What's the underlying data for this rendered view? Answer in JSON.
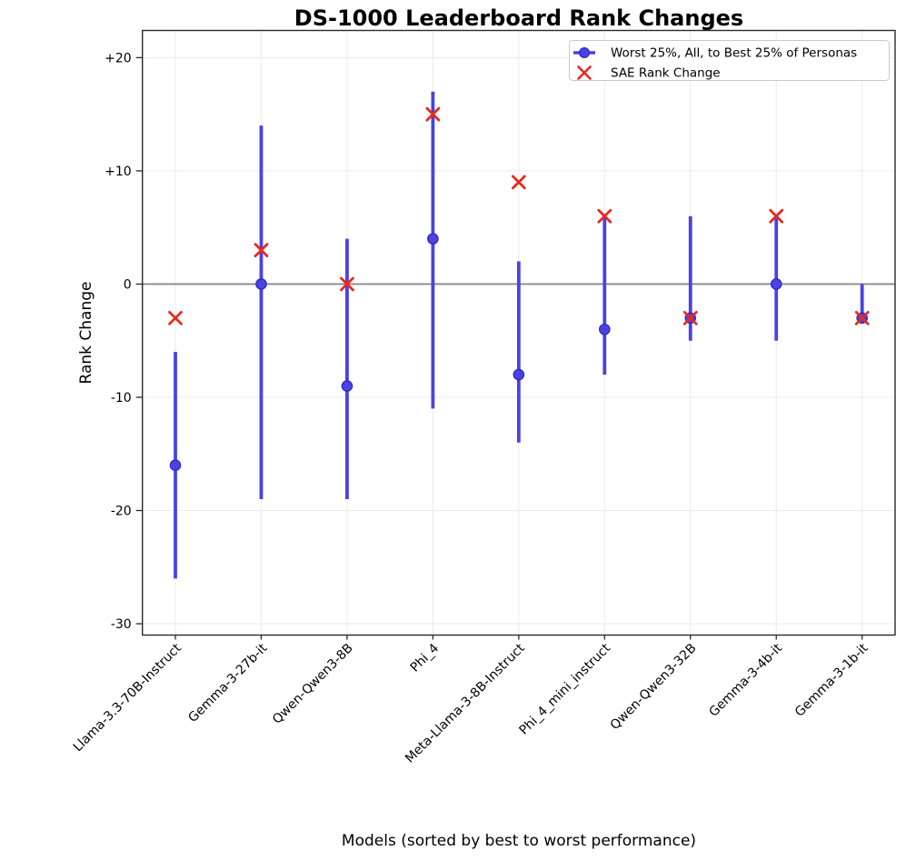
{
  "chart_data": {
    "type": "errorbar_scatter",
    "title": "DS-1000 Leaderboard Rank Changes",
    "xlabel": "Models (sorted by best to worst performance)",
    "ylabel": "Rank Change",
    "categories": [
      "Llama-3.3-70B-Instruct",
      "Gemma-3-27b-it",
      "Qwen-Qwen3-8B",
      "Phi_4",
      "Meta-Llama-3-8B-Instruct",
      "Phi_4_mini_instruct",
      "Qwen-Qwen3-32B",
      "Gemma-3-4b-it",
      "Gemma-3-1b-it"
    ],
    "ylim": [
      -31.0,
      22.4
    ],
    "yticks": {
      "values": [
        20,
        10,
        0,
        -10,
        -20,
        -30
      ],
      "labels": [
        "+20",
        "+10",
        "0",
        "-10",
        "-20",
        "-30"
      ]
    },
    "zero_line": 0,
    "grid": true,
    "series": [
      {
        "name": "Worst 25%, All, to Best 25% of Personas",
        "type": "errorbar",
        "low": [
          -26,
          -19,
          -19,
          -11,
          -14,
          -8,
          -5,
          -5,
          -3
        ],
        "mid": [
          -16,
          0,
          -9,
          4,
          -8,
          -4,
          -3,
          0,
          -3
        ],
        "high": [
          -6,
          14,
          4,
          17,
          2,
          6,
          6,
          6,
          0
        ],
        "color": "#4a42e4",
        "marker_edge_color": "#2e28b8"
      },
      {
        "name": "SAE Rank Change",
        "type": "scatter_x",
        "values": [
          -3,
          3,
          0,
          15,
          9,
          6,
          -3,
          6,
          -3
        ],
        "color": "#e8291d"
      }
    ],
    "legend": {
      "position": "upper right",
      "entries": [
        {
          "label": "Worst 25%, All, to Best 25% of Personas",
          "marker": "circle-line",
          "color": "#4a42e4"
        },
        {
          "label": "SAE Rank Change",
          "marker": "x",
          "color": "#e8291d"
        }
      ]
    },
    "colors": {
      "zero_line": "#8a8a8a",
      "grid": "#ebebeb",
      "spine": "#2a2a2a",
      "legend_border": "#c9c9c9"
    }
  }
}
